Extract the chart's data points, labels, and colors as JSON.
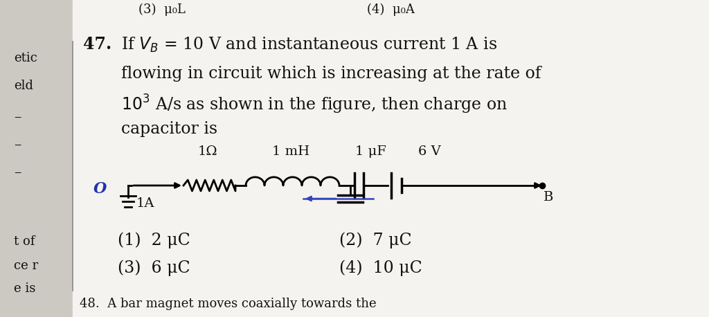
{
  "bg_color": "#f0eeeb",
  "page_bg": "#f5f3f0",
  "text_color": "#111111",
  "label_1ohm": "1Ω",
  "label_1mH": "1 mH",
  "label_1uF": "1 μF",
  "label_6V": "6 V",
  "label_1A": "1A",
  "label_O": "O",
  "label_B": "B",
  "opt1": "(1)  2 μC",
  "opt2": "(2)  7 μC",
  "opt3": "(3)  6 μC",
  "opt4": "(4)  10 μC",
  "prev_q3": "(3)  μ₀L",
  "prev_q4": "(4)  μ₀A",
  "next_q": "48.  A bar magnet moves coaxially towards the",
  "font_size_main": 17,
  "font_size_labels": 14,
  "font_size_small": 13
}
